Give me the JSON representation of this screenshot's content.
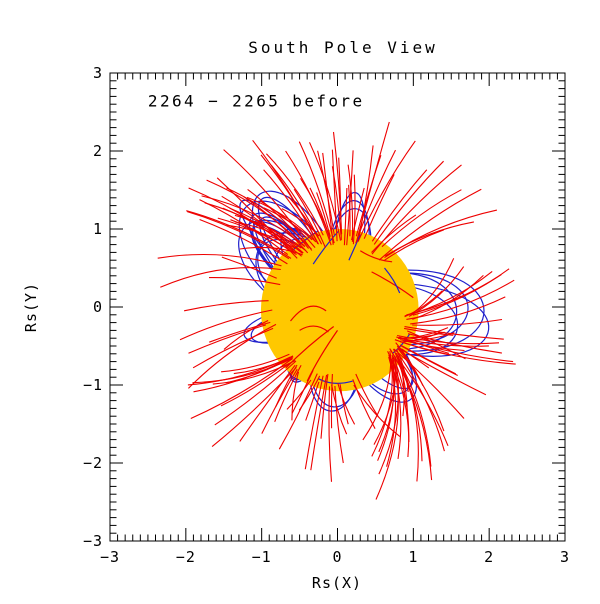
{
  "chart_data": {
    "type": "line",
    "title": "South Pole View",
    "annotation": "2264 − 2265 before",
    "xlabel": "Rs(X)",
    "ylabel": "Rs(Y)",
    "xlim": [
      -3,
      3
    ],
    "ylim": [
      -3,
      3
    ],
    "x_ticks": {
      "values": [
        -3,
        -2,
        -1,
        0,
        1,
        2,
        3
      ],
      "labels": [
        "−3",
        "−2",
        "−1",
        "0",
        "1",
        "2",
        "3"
      ]
    },
    "y_ticks": {
      "values": [
        -3,
        -2,
        -1,
        0,
        1,
        2,
        3
      ],
      "labels": [
        "−3",
        "−2",
        "−1",
        "0",
        "1",
        "2",
        "3"
      ]
    },
    "minor_tick_step": 0.1,
    "grid": false,
    "legend": "none",
    "colors": {
      "background": "#FFFFFF",
      "axis": "#000000",
      "sun_disk": "#FFC800",
      "open_field": "#EE0000",
      "closed_field": "#2020CC"
    },
    "sun": {
      "cx": 0.03,
      "cy": -0.04,
      "r": 1.04
    },
    "annotation_pos": {
      "x": -2.5,
      "y": 2.57
    },
    "seed": 1234,
    "open_field_fans": [
      {
        "name": "north-fan",
        "foot": [
          48,
          128
        ],
        "end": [
          34,
          150
        ],
        "count": 56,
        "r0": [
          0.82,
          1.0
        ],
        "r1": [
          1.5,
          2.6
        ]
      },
      {
        "name": "northwest-diagonals",
        "foot": [
          127,
          150
        ],
        "end": [
          133,
          170
        ],
        "count": 13,
        "r0": [
          0.85,
          1.0
        ],
        "r1": [
          1.7,
          2.55
        ]
      },
      {
        "name": "west-sparse",
        "foot": [
          152,
          204
        ],
        "end": [
          158,
          213
        ],
        "count": 9,
        "r0": [
          0.85,
          1.0
        ],
        "r1": [
          1.6,
          2.35
        ]
      },
      {
        "name": "southwest-fan",
        "foot": [
          223,
          237
        ],
        "end": [
          204,
          254
        ],
        "count": 16,
        "r0": [
          0.82,
          0.98
        ],
        "r1": [
          1.45,
          2.45
        ]
      },
      {
        "name": "south-fan",
        "foot": [
          246,
          284
        ],
        "end": [
          241,
          297
        ],
        "count": 17,
        "r0": [
          0.82,
          1.0
        ],
        "r1": [
          1.35,
          2.3
        ]
      },
      {
        "name": "southeast-fan",
        "foot": [
          318,
          336
        ],
        "end": [
          281,
          352
        ],
        "count": 40,
        "r0": [
          0.82,
          0.98
        ],
        "r1": [
          1.35,
          2.5
        ]
      },
      {
        "name": "east-fan",
        "foot": [
          336,
          362
        ],
        "end": [
          333,
          388
        ],
        "count": 14,
        "r0": [
          0.85,
          1.0
        ],
        "r1": [
          1.3,
          2.35
        ]
      }
    ],
    "closed_loop_clusters": [
      {
        "name": "northwest-bundle",
        "center": 133,
        "jitter": 9,
        "count": 13,
        "sep": [
          22,
          58
        ],
        "apex": [
          1.12,
          1.95
        ]
      },
      {
        "name": "north-loops",
        "center": 82,
        "jitter": 4,
        "count": 3,
        "sep": [
          20,
          34
        ],
        "apex": [
          1.28,
          1.62
        ]
      },
      {
        "name": "east-loops",
        "center": 358,
        "jitter": 7,
        "count": 5,
        "sep": [
          35,
          65
        ],
        "apex": [
          1.5,
          2.05
        ]
      },
      {
        "name": "southeast-loops",
        "center": 308,
        "jitter": 6,
        "count": 3,
        "sep": [
          22,
          40
        ],
        "apex": [
          1.28,
          1.7
        ]
      },
      {
        "name": "south-loop",
        "center": 265,
        "jitter": 4,
        "count": 2,
        "sep": [
          26,
          36
        ],
        "apex": [
          1.26,
          1.42
        ]
      },
      {
        "name": "west-loop",
        "center": 193,
        "jitter": 4,
        "count": 2,
        "sep": [
          18,
          26
        ],
        "apex": [
          1.18,
          1.32
        ]
      },
      {
        "name": "southwest-edge-loops",
        "center": 236,
        "jitter": 6,
        "count": 3,
        "sep": [
          10,
          20
        ],
        "apex": [
          1.04,
          1.14
        ]
      }
    ],
    "disk_strokes": [
      {
        "color": "open_field",
        "q": [
          -0.62,
          -0.18,
          -0.38,
          0.12,
          -0.15,
          -0.05
        ]
      },
      {
        "color": "open_field",
        "q": [
          -0.5,
          -0.3,
          -0.3,
          -0.18,
          -0.12,
          -0.32
        ]
      },
      {
        "color": "open_field",
        "q": [
          -0.05,
          -0.25,
          -0.4,
          -0.5,
          -0.68,
          -0.78
        ]
      },
      {
        "color": "open_field",
        "q": [
          0.0,
          -0.3,
          -0.25,
          -0.65,
          -0.4,
          -0.95
        ]
      },
      {
        "color": "open_field",
        "q": [
          0.45,
          0.45,
          0.75,
          0.3,
          1.0,
          0.12
        ]
      },
      {
        "color": "open_field",
        "q": [
          0.3,
          0.72,
          0.5,
          0.6,
          0.72,
          0.58
        ]
      },
      {
        "color": "closed_field",
        "q": [
          0.02,
          0.98,
          -0.15,
          0.8,
          -0.32,
          0.55
        ]
      },
      {
        "color": "closed_field",
        "q": [
          0.3,
          0.93,
          0.22,
          0.75,
          0.15,
          0.6
        ]
      },
      {
        "color": "closed_field",
        "q": [
          -0.25,
          0.98,
          -0.45,
          0.85,
          -0.6,
          0.72
        ]
      },
      {
        "color": "closed_field",
        "q": [
          0.62,
          0.5,
          0.75,
          0.35,
          0.82,
          0.18
        ]
      },
      {
        "color": "closed_field",
        "q": [
          -0.25,
          -0.92,
          -0.05,
          -1.02,
          0.2,
          -0.95
        ]
      },
      {
        "color": "closed_field",
        "q": [
          0.72,
          -0.6,
          0.85,
          -0.5,
          0.95,
          -0.35
        ]
      }
    ]
  }
}
